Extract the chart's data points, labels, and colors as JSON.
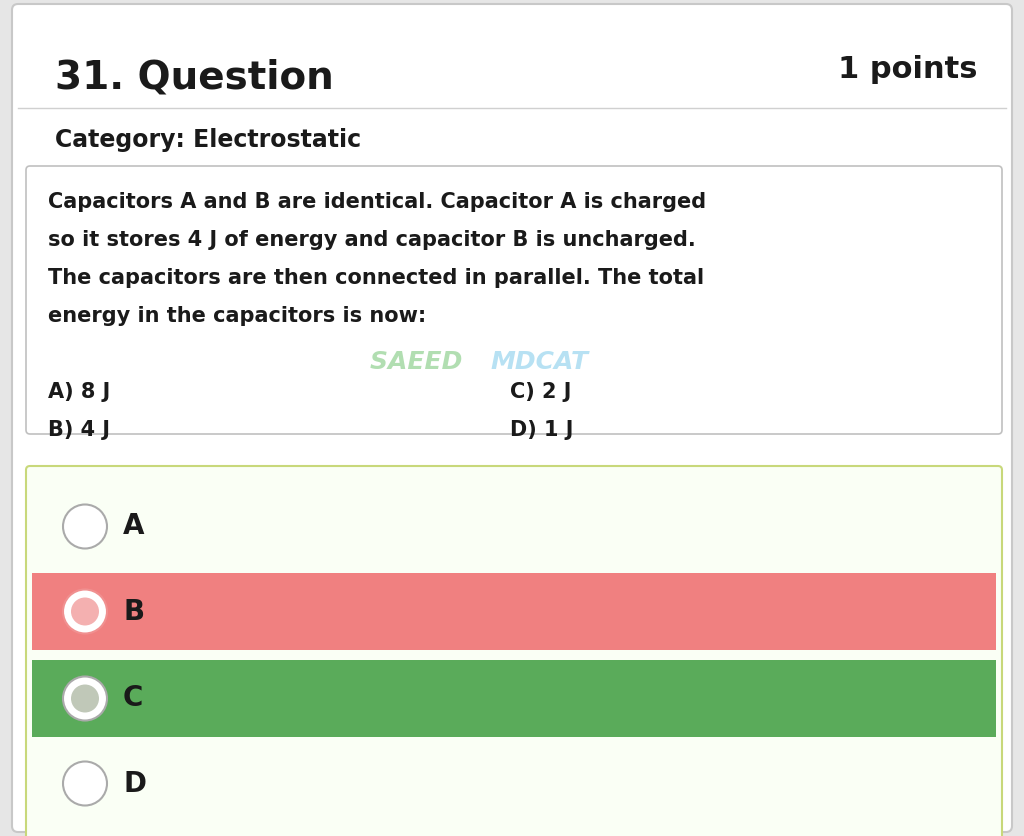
{
  "title": "31. Question",
  "points": "1 points",
  "category": "Category: Electrostatic",
  "question_text_lines": [
    "Capacitors A and B are identical. Capacitor A is charged",
    "so it stores 4 J of energy and capacitor B is uncharged.",
    "The capacitors are then connected in parallel. The total",
    "energy in the capacitors is now:"
  ],
  "options_left": [
    "A) 8 J",
    "B) 4 J"
  ],
  "options_right": [
    "C) 2 J",
    "D) 1 J"
  ],
  "bg_color": "#e6e6e6",
  "card_color": "#ffffff",
  "question_box_color": "#ffffff",
  "question_box_border": "#c0c0c0",
  "answer_box_bg": "#fafff5",
  "answer_box_border": "#c8d87a",
  "option_a_bg": "#fafff5",
  "option_b_bg": "#f08080",
  "option_c_bg": "#5aab5a",
  "option_d_bg": "#fafff5",
  "radio_a_fill": "#dddddd",
  "radio_b_fill": "#f4b0b0",
  "radio_c_fill": "#c0c8b8",
  "radio_d_fill": "#dddddd",
  "text_dark": "#1a1a1a",
  "text_c_label": "#1a1a1a",
  "watermark_green": "#7ec87e",
  "watermark_blue": "#87ceeb"
}
